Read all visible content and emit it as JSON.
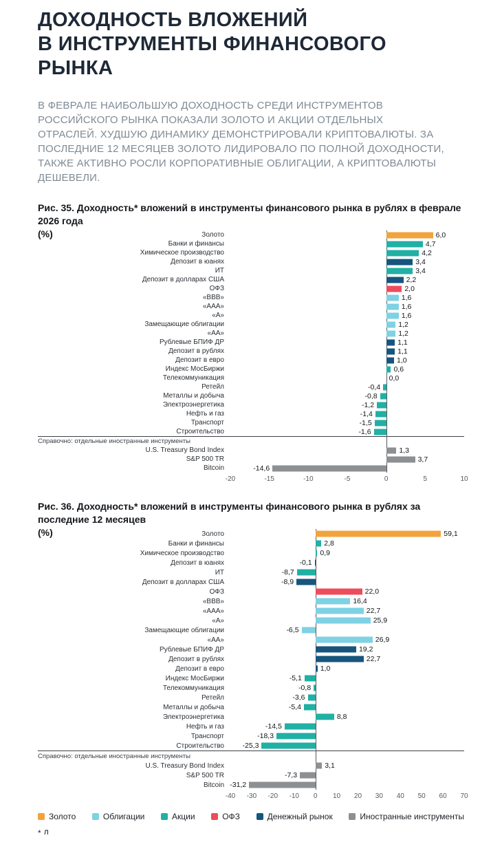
{
  "header": {
    "title_lines": [
      "ДОХОДНОСТЬ ВЛОЖЕНИЙ",
      "В ИНСТРУМЕНТЫ ФИНАНСОВОГО",
      "РЫНКА"
    ],
    "intro": "В ФЕВРАЛЕ НАИБОЛЬШУЮ ДОХОДНОСТЬ СРЕДИ ИНСТРУМЕНТОВ РОССИЙСКОГО РЫНКА ПОКАЗАЛИ ЗОЛОТО И АКЦИИ ОТДЕЛЬНЫХ ОТРАСЛЕЙ. ХУДШУЮ ДИНАМИКУ ДЕМОНСТРИРОВАЛИ КРИПТОВАЛЮТЫ. ЗА ПОСЛЕДНИЕ 12 МЕСЯЦЕВ ЗОЛОТО ЛИДИРОВАЛО ПО ПОЛНОЙ ДОХОДНОСТИ, ТАКЖЕ АКТИВНО РОСЛИ КОРПОРАТИВНЫЕ ОБЛИГАЦИИ, А КРИПТОВАЛЮТЫ ДЕШЕВЕЛИ."
  },
  "colors": {
    "gold": "#F2A33C",
    "bonds": "#7FD1E4",
    "equities": "#20B0A4",
    "ofz": "#ED4C5C",
    "money": "#17557D",
    "foreign": "#8C9093"
  },
  "legend": {
    "items": [
      {
        "label": "Золото",
        "group": "gold"
      },
      {
        "label": "Облигации",
        "group": "bonds"
      },
      {
        "label": "Акции",
        "group": "equities"
      },
      {
        "label": "ОФЗ",
        "group": "ofz"
      },
      {
        "label": "Денежный рынок",
        "group": "money"
      },
      {
        "label": "Иностранные инструменты",
        "group": "foreign"
      }
    ]
  },
  "footnote": "* Д",
  "chart_data": [
    {
      "type": "bar",
      "orientation": "horizontal",
      "title": "Рис. 35. Доходность* вложений в инструменты финансового рынка в рублях в феврале 2026 года",
      "unit": "(%)",
      "xlim": [
        -20,
        10
      ],
      "ticks": [
        -20,
        -15,
        -10,
        -5,
        0,
        5,
        10
      ],
      "rows": [
        {
          "label": "Золото",
          "value": 6.0,
          "display": "6,0",
          "group": "gold"
        },
        {
          "label": "Банки и финансы",
          "value": 4.7,
          "display": "4,7",
          "group": "equities"
        },
        {
          "label": "Химическое производство",
          "value": 4.2,
          "display": "4,2",
          "group": "equities"
        },
        {
          "label": "Депозит в юанях",
          "value": 3.4,
          "display": "3,4",
          "group": "money"
        },
        {
          "label": "ИТ",
          "value": 3.4,
          "display": "3,4",
          "group": "equities"
        },
        {
          "label": "Депозит в долларах США",
          "value": 2.2,
          "display": "2,2",
          "group": "money"
        },
        {
          "label": "ОФЗ",
          "value": 2.0,
          "display": "2,0",
          "group": "ofz"
        },
        {
          "label": "«BBB»",
          "value": 1.6,
          "display": "1,6",
          "group": "bonds"
        },
        {
          "label": "«AAA»",
          "value": 1.6,
          "display": "1,6",
          "group": "bonds"
        },
        {
          "label": "«A»",
          "value": 1.6,
          "display": "1,6",
          "group": "bonds"
        },
        {
          "label": "Замещающие облигации",
          "value": 1.2,
          "display": "1,2",
          "group": "bonds"
        },
        {
          "label": "«AA»",
          "value": 1.2,
          "display": "1,2",
          "group": "bonds"
        },
        {
          "label": "Рублевые БПИФ ДР",
          "value": 1.1,
          "display": "1,1",
          "group": "money"
        },
        {
          "label": "Депозит в рублях",
          "value": 1.1,
          "display": "1,1",
          "group": "money"
        },
        {
          "label": "Депозит в евро",
          "value": 1.0,
          "display": "1,0",
          "group": "money"
        },
        {
          "label": "Индекс МосБиржи",
          "value": 0.6,
          "display": "0,6",
          "group": "equities"
        },
        {
          "label": "Телекоммуникация",
          "value": 0.0,
          "display": "0,0",
          "group": "equities"
        },
        {
          "label": "Ретейл",
          "value": -0.4,
          "display": "-0,4",
          "group": "equities"
        },
        {
          "label": "Металлы и добыча",
          "value": -0.8,
          "display": "-0,8",
          "group": "equities"
        },
        {
          "label": "Электроэнергетика",
          "value": -1.2,
          "display": "-1,2",
          "group": "equities"
        },
        {
          "label": "Нефть и газ",
          "value": -1.4,
          "display": "-1,4",
          "group": "equities"
        },
        {
          "label": "Транспорт",
          "value": -1.5,
          "display": "-1,5",
          "group": "equities"
        },
        {
          "label": "Строительство",
          "value": -1.6,
          "display": "-1,6",
          "group": "equities"
        },
        {
          "type": "separator",
          "label": "Справочно: отдельные иностранные инструменты"
        },
        {
          "label": "U.S. Treasury Bond Index",
          "value": 1.3,
          "display": "1,3",
          "group": "foreign"
        },
        {
          "label": "S&P 500 TR",
          "value": 3.7,
          "display": "3,7",
          "group": "foreign"
        },
        {
          "label": "Bitcoin",
          "value": -14.6,
          "display": "-14,6",
          "group": "foreign"
        }
      ]
    },
    {
      "type": "bar",
      "orientation": "horizontal",
      "title": "Рис. 36. Доходность* вложений в инструменты финансового рынка в рублях за последние 12 месяцев",
      "unit": "(%)",
      "xlim": [
        -40,
        70
      ],
      "ticks": [
        -40,
        -30,
        -20,
        -10,
        0,
        10,
        20,
        30,
        40,
        50,
        60,
        70
      ],
      "rows": [
        {
          "label": "Золото",
          "value": 59.1,
          "display": "59,1",
          "group": "gold"
        },
        {
          "label": "Банки и финансы",
          "value": 2.8,
          "display": "2,8",
          "group": "equities"
        },
        {
          "label": "Химическое производство",
          "value": 0.9,
          "display": "0,9",
          "group": "equities"
        },
        {
          "label": "Депозит в юанях",
          "value": -0.1,
          "display": "-0,1",
          "group": "money"
        },
        {
          "label": "ИТ",
          "value": -8.7,
          "display": "-8,7",
          "group": "equities"
        },
        {
          "label": "Депозит в долларах США",
          "value": -8.9,
          "display": "-8,9",
          "group": "money"
        },
        {
          "label": "ОФЗ",
          "value": 22.0,
          "display": "22,0",
          "group": "ofz"
        },
        {
          "label": "«BBB»",
          "value": 16.4,
          "display": "16,4",
          "group": "bonds"
        },
        {
          "label": "«AAA»",
          "value": 22.7,
          "display": "22,7",
          "group": "bonds"
        },
        {
          "label": "«A»",
          "value": 25.9,
          "display": "25,9",
          "group": "bonds"
        },
        {
          "label": "Замещающие облигации",
          "value": -6.5,
          "display": "-6,5",
          "group": "bonds"
        },
        {
          "label": "«AA»",
          "value": 26.9,
          "display": "26,9",
          "group": "bonds"
        },
        {
          "label": "Рублевые БПИФ ДР",
          "value": 19.2,
          "display": "19,2",
          "group": "money"
        },
        {
          "label": "Депозит в рублях",
          "value": 22.7,
          "display": "22,7",
          "group": "money"
        },
        {
          "label": "Депозит в евро",
          "value": 1.0,
          "display": "1,0",
          "group": "money"
        },
        {
          "label": "Индекс МосБиржи",
          "value": -5.1,
          "display": "-5,1",
          "group": "equities"
        },
        {
          "label": "Телекоммуникация",
          "value": -0.8,
          "display": "-0,8",
          "group": "equities"
        },
        {
          "label": "Ретейл",
          "value": -3.6,
          "display": "-3,6",
          "group": "equities"
        },
        {
          "label": "Металлы и добыча",
          "value": -5.4,
          "display": "-5,4",
          "group": "equities"
        },
        {
          "label": "Электроэнергетика",
          "value": 8.8,
          "display": "8,8",
          "group": "equities"
        },
        {
          "label": "Нефть и газ",
          "value": -14.5,
          "display": "-14,5",
          "group": "equities"
        },
        {
          "label": "Транспорт",
          "value": -18.3,
          "display": "-18,3",
          "group": "equities"
        },
        {
          "label": "Строительство",
          "value": -25.3,
          "display": "-25,3",
          "group": "equities"
        },
        {
          "type": "separator",
          "label": "Справочно: отдельные иностранные инструменты"
        },
        {
          "label": "U.S. Treasury Bond Index",
          "value": 3.1,
          "display": "3,1",
          "group": "foreign"
        },
        {
          "label": "S&P 500 TR",
          "value": -7.3,
          "display": "-7,3",
          "group": "foreign"
        },
        {
          "label": "Bitcoin",
          "value": -31.2,
          "display": "-31,2",
          "group": "foreign"
        }
      ]
    }
  ]
}
